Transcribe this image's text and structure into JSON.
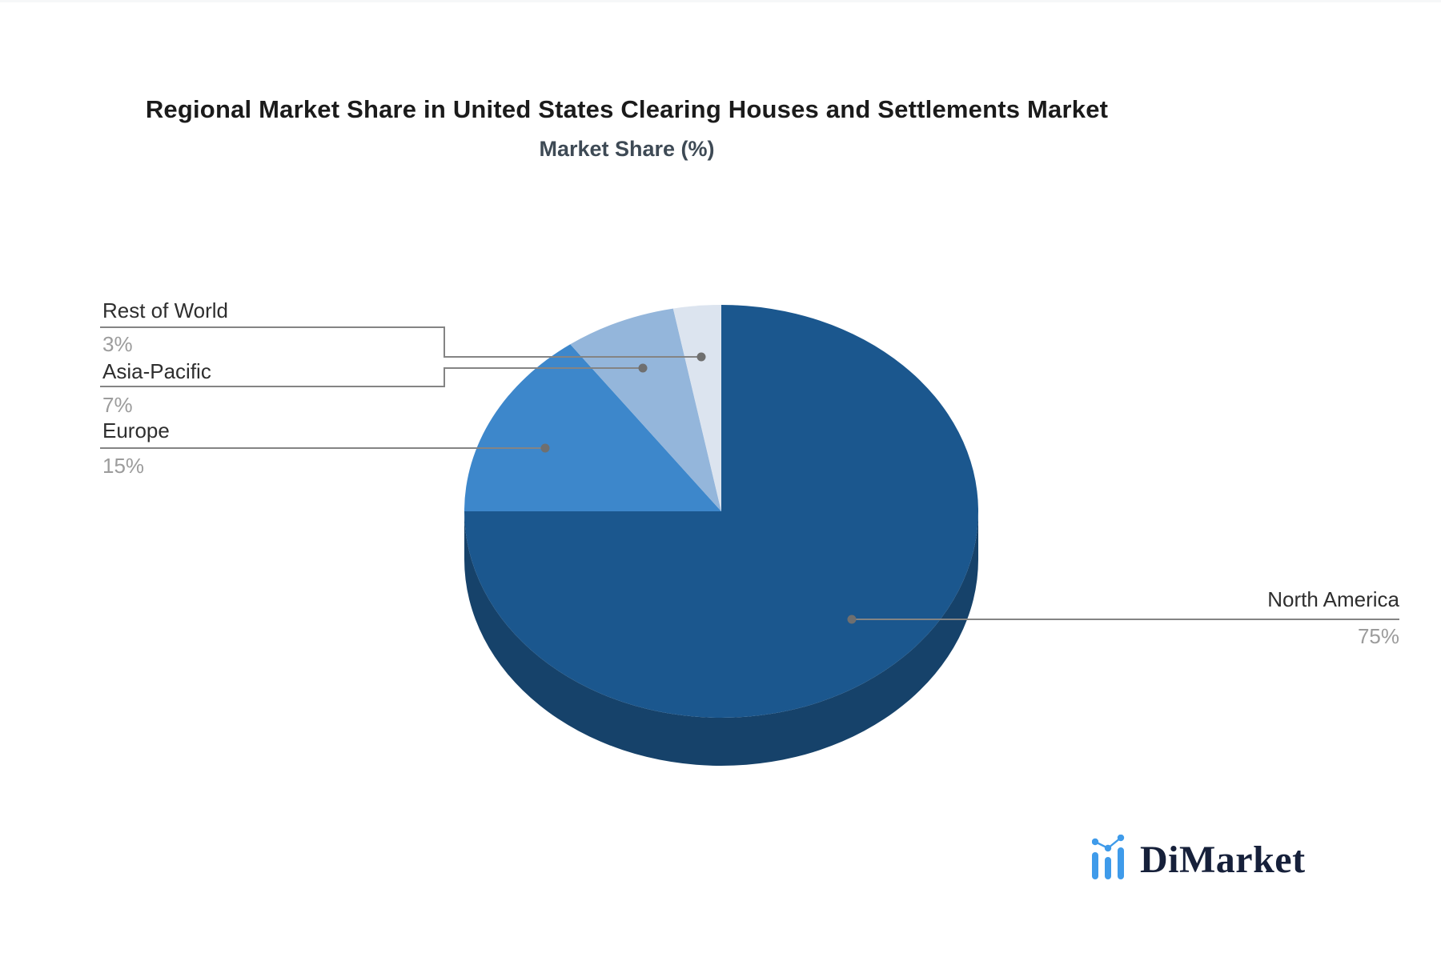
{
  "title": "Regional Market Share in United States Clearing Houses and Settlements Market",
  "subtitle": "Market Share (%)",
  "chart_data": {
    "type": "pie",
    "style": "3d",
    "unit": "%",
    "start_angle_deg": 0,
    "direction": "clockwise",
    "slices": [
      {
        "label": "North America",
        "value": 75,
        "pct_label": "75%",
        "color": "#1b578e"
      },
      {
        "label": "Europe",
        "value": 15,
        "pct_label": "15%",
        "color": "#3d87cb"
      },
      {
        "label": "Asia-Pacific",
        "value": 7,
        "pct_label": "7%",
        "color": "#94b6db"
      },
      {
        "label": "Rest of World",
        "value": 3,
        "pct_label": "3%",
        "color": "#dce4ef"
      }
    ],
    "depth_color": "#16426a",
    "leader_line_color": "#848484",
    "legend_position": "callout-labels",
    "grid": false
  },
  "logo": {
    "text": "DiMarket",
    "icon": "bar-line-chart-icon",
    "icon_color": "#3f9bea",
    "text_color": "#16203a"
  }
}
